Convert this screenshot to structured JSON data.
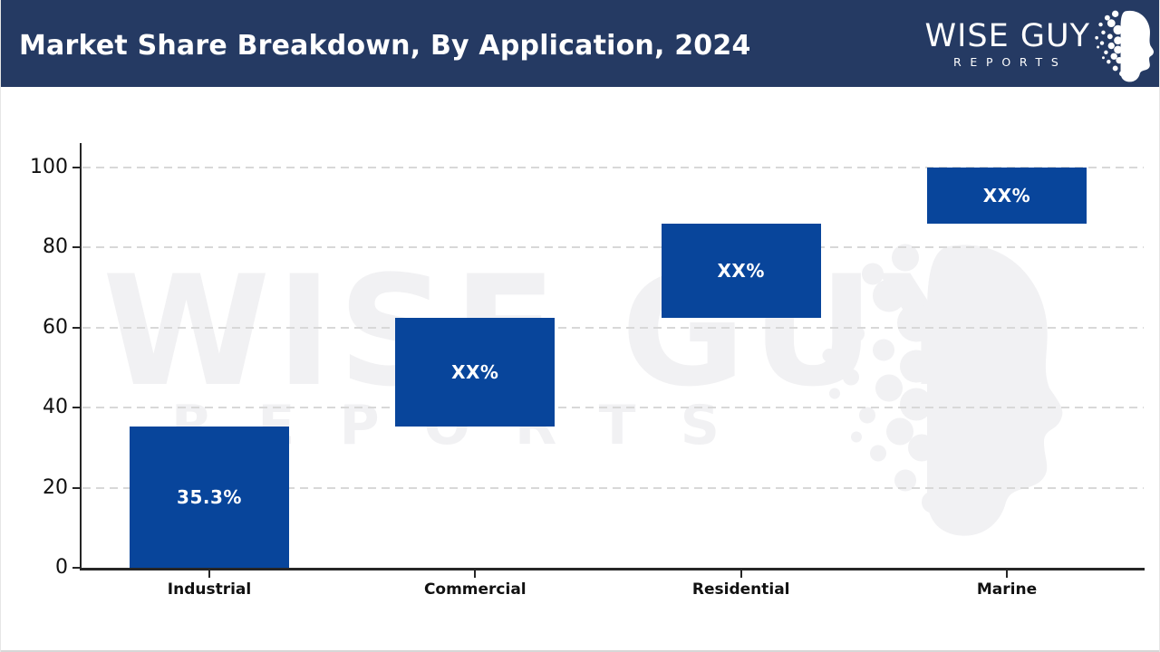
{
  "header": {
    "title": "Market Share Breakdown, By Application, 2024",
    "brand": {
      "line1": "WISE GUY",
      "line2": "REPORTS"
    }
  },
  "watermark": {
    "line1": "WISE GUY",
    "line2": "REPORTS"
  },
  "chart_data": {
    "type": "bar",
    "variant": "waterfall",
    "title": "Market Share Breakdown, By Application, 2024",
    "categories": [
      "Industrial",
      "Commercial",
      "Residential",
      "Marine"
    ],
    "segments": [
      {
        "category": "Industrial",
        "start": 0,
        "end": 35.3,
        "label": "35.3%"
      },
      {
        "category": "Commercial",
        "start": 35.3,
        "end": 62.4,
        "label": "XX%"
      },
      {
        "category": "Residential",
        "start": 62.4,
        "end": 86.0,
        "label": "XX%"
      },
      {
        "category": "Marine",
        "start": 86.0,
        "end": 100,
        "label": "XX%"
      }
    ],
    "yticks": [
      0,
      20,
      40,
      60,
      80,
      100
    ],
    "ylim": [
      0,
      106
    ],
    "xlabel": "",
    "ylabel": "",
    "grid": "horizontal-dashed",
    "legend": "none",
    "colors": {
      "bar": "#08459b",
      "header_bg": "#253a63",
      "grid": "#d8d8d8",
      "axis": "#262626",
      "bar_label": "#ffffff",
      "tick_label": "#111111",
      "watermark": "#f1f1f3"
    }
  }
}
